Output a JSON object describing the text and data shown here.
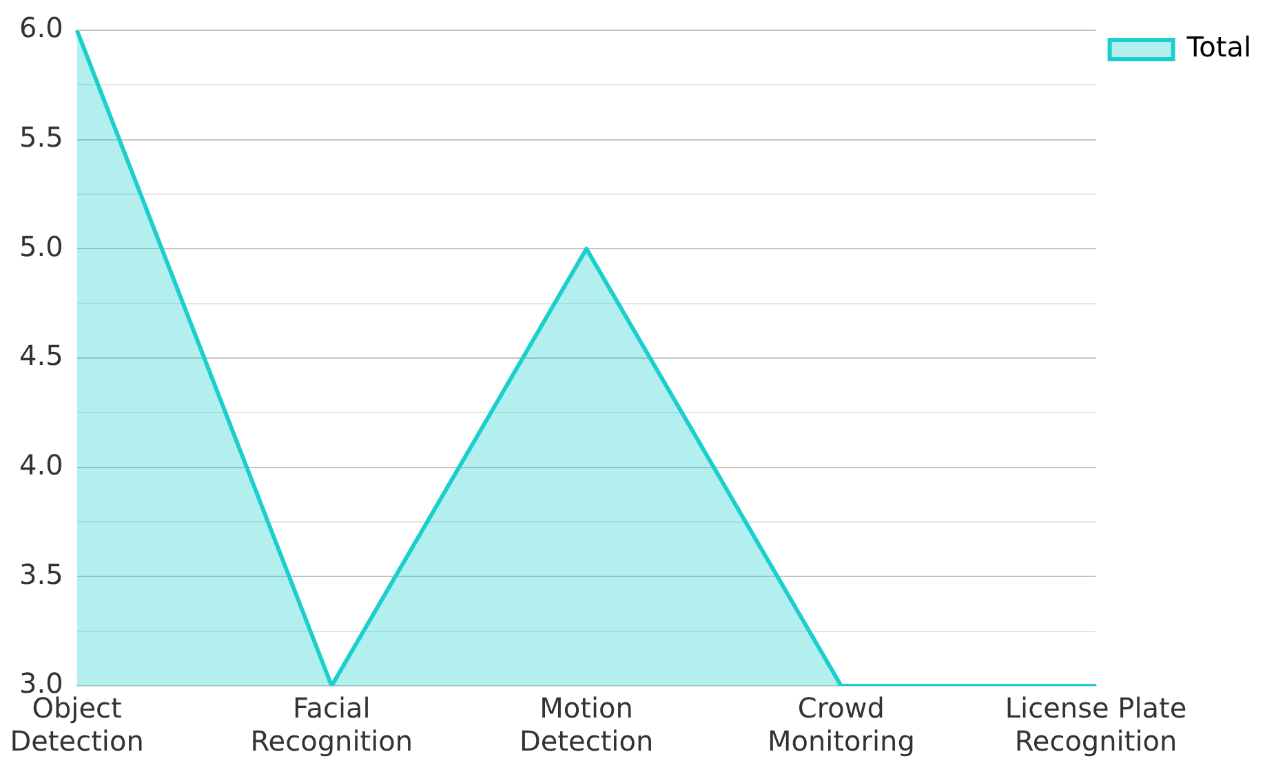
{
  "chart_data": {
    "type": "area",
    "categories": [
      "Object Detection",
      "Facial Recognition",
      "Motion Detection",
      "Crowd Monitoring",
      "License Plate Recognition"
    ],
    "series": [
      {
        "name": "Total",
        "color": "#1ccfcf",
        "values": [
          6,
          3,
          5,
          3,
          3
        ]
      }
    ],
    "ylim": [
      3,
      6
    ],
    "yticks": [
      {
        "value": 3,
        "label": "3.0"
      },
      {
        "value": 3.25,
        "label": null
      },
      3.5,
      {
        "value": 3.75,
        "label": null
      },
      {
        "value": 4,
        "label": "4.0"
      },
      {
        "value": 4.25,
        "label": null
      },
      4.5,
      {
        "value": 4.75,
        "label": null
      },
      {
        "value": 5,
        "label": "5.0"
      },
      {
        "value": 5.25,
        "label": null
      },
      5.5,
      {
        "value": 5.75,
        "label": null
      },
      {
        "value": 6,
        "label": "6.0"
      }
    ],
    "grid": "y",
    "legend": "top right"
  }
}
